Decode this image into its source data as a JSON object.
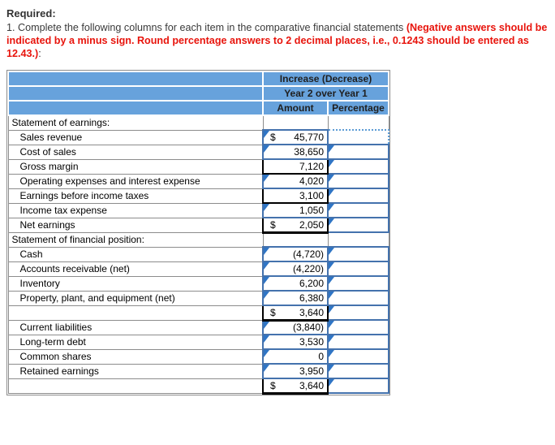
{
  "colors": {
    "header_blue": "#67a2dc",
    "input_border_blue": "#4472ad",
    "marker_blue": "#2f75c5",
    "focus_blue": "#5b9bd5",
    "grid_gray": "#8c8c8c",
    "static_black": "#000000",
    "alert_red": "#e8140c",
    "text_dark": "#3a3a3a"
  },
  "instructions": {
    "heading": "Required:",
    "intro": "1. Complete the following columns for each item in the comparative financial statements ",
    "emphasis": "(Negative answers should be indicated by a minus sign. Round percentage answers to 2 decimal places, i.e., 0.1243 should be entered as 12.43.)",
    "suffix": ":"
  },
  "table": {
    "header": {
      "group_title": "Increase (Decrease)",
      "group_subtitle": "Year 2 over Year 1",
      "amount_label": "Amount",
      "percentage_label": "Percentage"
    },
    "rows": [
      {
        "label": "Statement of earnings:",
        "section": true,
        "amount": {
          "kind": "plain"
        },
        "percentage": {
          "kind": "plain"
        }
      },
      {
        "label": "Sales revenue",
        "section": false,
        "amount": {
          "kind": "input",
          "prefix": "$",
          "value": "45,770"
        },
        "percentage": {
          "kind": "focused",
          "value": ""
        }
      },
      {
        "label": "Cost of sales",
        "section": false,
        "amount": {
          "kind": "input",
          "value": "38,650"
        },
        "percentage": {
          "kind": "input",
          "value": ""
        }
      },
      {
        "label": "Gross margin",
        "section": false,
        "amount": {
          "kind": "static",
          "value": "7,120"
        },
        "percentage": {
          "kind": "input",
          "value": ""
        }
      },
      {
        "label": "Operating expenses and interest expense",
        "section": false,
        "amount": {
          "kind": "input",
          "value": "4,020"
        },
        "percentage": {
          "kind": "input",
          "value": ""
        }
      },
      {
        "label": "Earnings before income taxes",
        "section": false,
        "amount": {
          "kind": "static",
          "value": "3,100"
        },
        "percentage": {
          "kind": "input",
          "value": ""
        }
      },
      {
        "label": "Income tax expense",
        "section": false,
        "amount": {
          "kind": "input",
          "value": "1,050"
        },
        "percentage": {
          "kind": "input",
          "value": ""
        }
      },
      {
        "label": "Net earnings",
        "section": false,
        "amount": {
          "kind": "static-total",
          "prefix": "$",
          "value": "2,050"
        },
        "percentage": {
          "kind": "input",
          "value": ""
        }
      },
      {
        "label": "Statement of financial position:",
        "section": true,
        "amount": {
          "kind": "plain"
        },
        "percentage": {
          "kind": "plain"
        }
      },
      {
        "label": "Cash",
        "section": false,
        "amount": {
          "kind": "input",
          "value": "(4,720)"
        },
        "percentage": {
          "kind": "input",
          "value": ""
        }
      },
      {
        "label": "Accounts receivable (net)",
        "section": false,
        "amount": {
          "kind": "input",
          "value": "(4,220)"
        },
        "percentage": {
          "kind": "input",
          "value": ""
        }
      },
      {
        "label": "Inventory",
        "section": false,
        "amount": {
          "kind": "input",
          "value": "6,200"
        },
        "percentage": {
          "kind": "input",
          "value": ""
        }
      },
      {
        "label": "Property, plant, and equipment (net)",
        "section": false,
        "amount": {
          "kind": "input",
          "value": "6,380"
        },
        "percentage": {
          "kind": "input",
          "value": ""
        }
      },
      {
        "label": "",
        "section": false,
        "amount": {
          "kind": "static-total",
          "prefix": "$",
          "value": "3,640"
        },
        "percentage": {
          "kind": "input",
          "value": ""
        }
      },
      {
        "label": "Current liabilities",
        "section": false,
        "amount": {
          "kind": "input",
          "value": "(3,840)"
        },
        "percentage": {
          "kind": "input",
          "value": ""
        }
      },
      {
        "label": "Long-term debt",
        "section": false,
        "amount": {
          "kind": "input",
          "value": "3,530"
        },
        "percentage": {
          "kind": "input",
          "value": ""
        }
      },
      {
        "label": "Common shares",
        "section": false,
        "amount": {
          "kind": "input",
          "value": "0"
        },
        "percentage": {
          "kind": "input",
          "value": ""
        }
      },
      {
        "label": "Retained earnings",
        "section": false,
        "amount": {
          "kind": "input",
          "value": "3,950"
        },
        "percentage": {
          "kind": "input",
          "value": ""
        }
      },
      {
        "label": "",
        "section": false,
        "amount": {
          "kind": "static-total",
          "prefix": "$",
          "value": "3,640"
        },
        "percentage": {
          "kind": "input",
          "value": ""
        }
      }
    ]
  }
}
